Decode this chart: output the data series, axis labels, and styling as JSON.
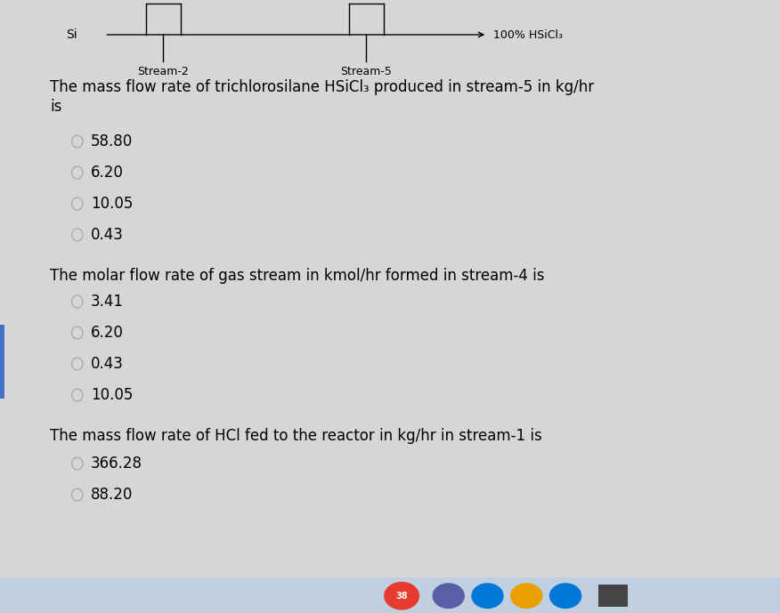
{
  "bg_color": "#d6d6d6",
  "panel_color": "#ffffff",
  "sidebar_color": "#e8e8e8",
  "text_color": "#000000",
  "gray_color": "#aaaaaa",
  "taskbar_color": "#c0d0e0",
  "si_label": "Si",
  "stream2_label": "Stream-2",
  "stream5_label": "Stream-5",
  "stream5_end_label": "100% HSiCl₃",
  "q1_line1": "The mass flow rate of trichlorosilane HSiCl₃ produced in stream-5 in kg/hr",
  "q1_line2": "is",
  "q1_options": [
    "58.80",
    "6.20",
    "10.05",
    "0.43"
  ],
  "q2_text": "The molar flow rate of gas stream in kmol/hr formed in stream-4 is",
  "q2_options": [
    "3.41",
    "6.20",
    "0.43",
    "10.05"
  ],
  "q3_text": "The mass flow rate of HCl fed to the reactor in kg/hr in stream-1 is",
  "q3_options": [
    "366.28",
    "88.20"
  ],
  "font_size_body": 12,
  "font_size_diagram": 9,
  "font_size_option": 12
}
